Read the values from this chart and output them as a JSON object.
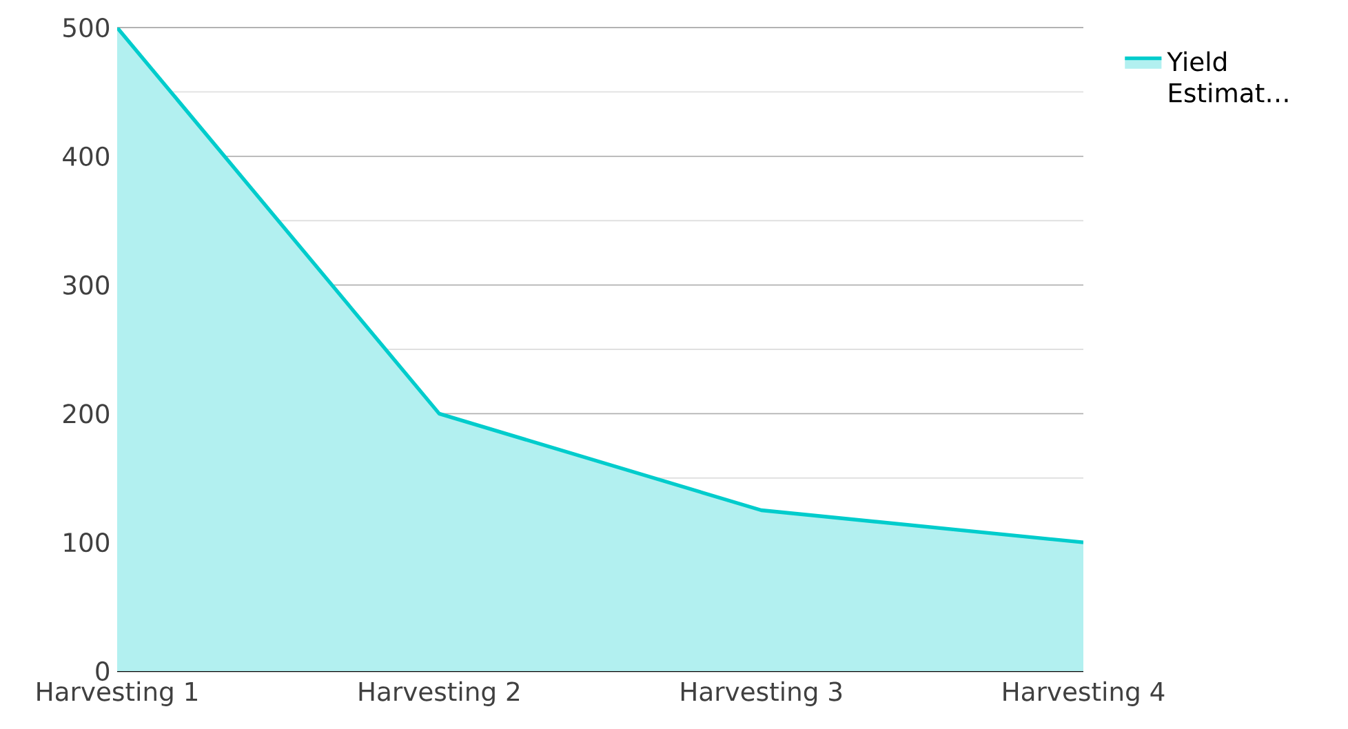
{
  "chart_data": {
    "type": "area",
    "categories": [
      "Harvesting 1",
      "Harvesting 2",
      "Harvesting 3",
      "Harvesting 4"
    ],
    "series": [
      {
        "name": "Yield Estimat…",
        "color": "#00cccc",
        "values": [
          500,
          200,
          125,
          100
        ]
      }
    ],
    "ylim": [
      0,
      500
    ],
    "yticks": [
      0,
      100,
      200,
      300,
      400,
      500
    ],
    "grid": "y",
    "legend": "top right"
  }
}
